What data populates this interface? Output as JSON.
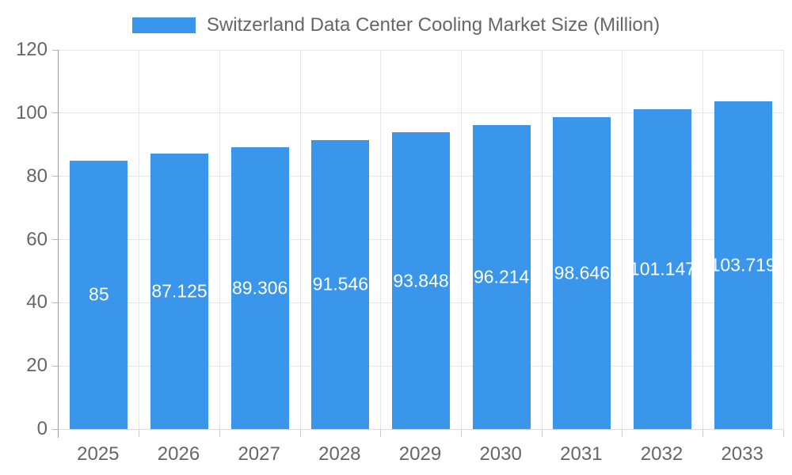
{
  "legend": {
    "label": "Switzerland Data Center Cooling Market Size (Million)"
  },
  "chart_data": {
    "type": "bar",
    "title": "Switzerland Data Center Cooling Market Size (Million)",
    "categories": [
      "2025",
      "2026",
      "2027",
      "2028",
      "2029",
      "2030",
      "2031",
      "2032",
      "2033"
    ],
    "values": [
      85,
      87.125,
      89.306,
      91.546,
      93.848,
      96.214,
      98.646,
      101.147,
      103.719
    ],
    "bar_labels": [
      "85",
      "87.125",
      "89.306",
      "91.546",
      "93.848",
      "96.214",
      "98.646",
      "101.147",
      "103.719"
    ],
    "xlabel": "",
    "ylabel": "",
    "ylim": [
      0,
      120
    ],
    "yticks": [
      0,
      20,
      40,
      60,
      80,
      100,
      120
    ],
    "grid": true,
    "legend_position": "top",
    "colors": {
      "bar": "#3A96EB",
      "bar_label": "#FFFFFF",
      "grid": "#E6E6E6",
      "axis_line_left": "#9A9A9A",
      "axis_line_bottom": "#DBDBDB",
      "tick": "#B8B8B8",
      "axis_text": "#666666",
      "legend_text": "#666666",
      "background": "#FFFFFF"
    }
  }
}
